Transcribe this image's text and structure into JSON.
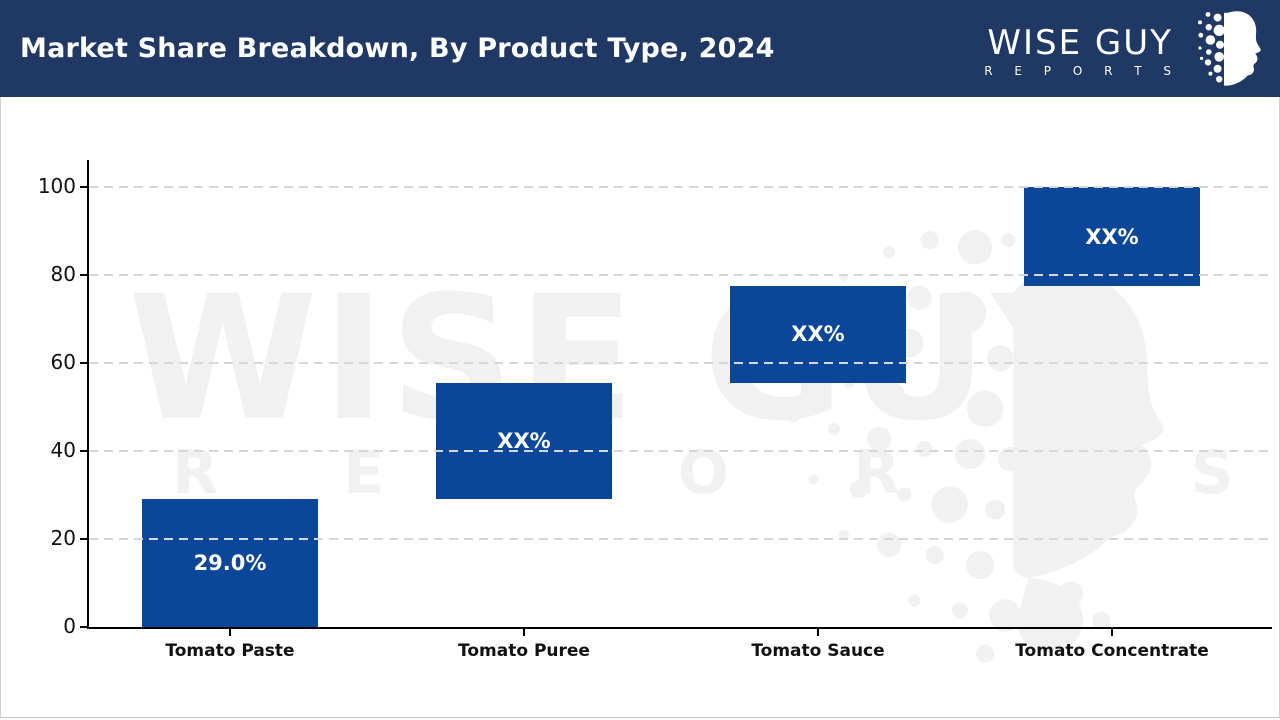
{
  "header": {
    "title": "Market Share Breakdown, By Product Type, 2024",
    "bg_color": "#1F3864",
    "logo": {
      "name": "WISE GUY REPORTS",
      "line1": "WISE GUY",
      "line2": "R E P O R T S"
    }
  },
  "watermark": {
    "line1": "WISE GUY",
    "line2": "R E P O R T S"
  },
  "chart_data": {
    "type": "bar",
    "subtype": "floating-waterfall",
    "title": "Market Share Breakdown, By Product Type, 2024",
    "categories": [
      "Tomato Paste",
      "Tomato Puree",
      "Tomato Sauce",
      "Tomato Concentrate"
    ],
    "segments": [
      {
        "category": "Tomato Paste",
        "start": 0,
        "end": 29,
        "label": "29.0%"
      },
      {
        "category": "Tomato Puree",
        "start": 29,
        "end": 55.5,
        "label": "XX%"
      },
      {
        "category": "Tomato Sauce",
        "start": 55.5,
        "end": 77.5,
        "label": "XX%"
      },
      {
        "category": "Tomato Concentrate",
        "start": 77.5,
        "end": 100,
        "label": "XX%"
      }
    ],
    "y_ticks": [
      0,
      20,
      40,
      60,
      80,
      100
    ],
    "ylim": [
      0,
      106
    ],
    "xlabel": "",
    "ylabel": "",
    "legend": "none",
    "grid": "horizontal-dashed",
    "bar_color": "#0B4798",
    "bar_label_color": "#FFFFFF",
    "axis_color": "#000000",
    "gridline_color": "#D7D7D7",
    "watermark_color": "#F1F1F1"
  }
}
